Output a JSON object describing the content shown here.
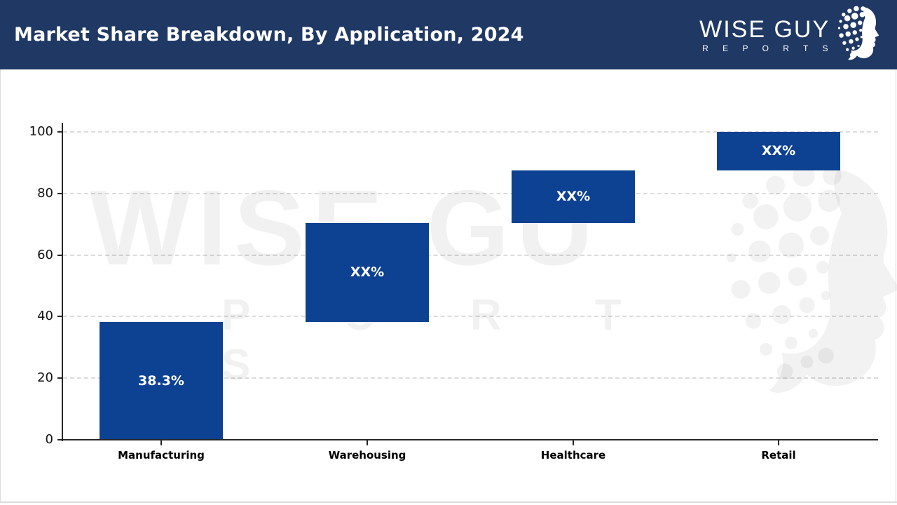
{
  "header": {
    "title": "Market Share Breakdown, By Application, 2024",
    "logo": {
      "brand_line1": "WISE GUY",
      "brand_line2": "R E P O R T S"
    }
  },
  "watermark": {
    "line1": "WISE GU",
    "line2": "P O R T S"
  },
  "colors": {
    "header_bg": "#1f3864",
    "bar": "#0d4191",
    "axis": "#262626",
    "grid": "#dcdcdc",
    "bar_label": "#ffffff"
  },
  "chart_data": {
    "type": "bar",
    "subtype": "waterfall",
    "title": "Market Share Breakdown, By Application, 2024",
    "categories": [
      "Manufacturing",
      "Warehousing",
      "Healthcare",
      "Retail"
    ],
    "bars": [
      {
        "category": "Manufacturing",
        "start": 0,
        "end": 38.3,
        "label": "38.3%"
      },
      {
        "category": "Warehousing",
        "start": 38.3,
        "end": 70.4,
        "label": "XX%"
      },
      {
        "category": "Healthcare",
        "start": 70.4,
        "end": 87.5,
        "label": "XX%"
      },
      {
        "category": "Retail",
        "start": 87.5,
        "end": 100,
        "label": "XX%"
      }
    ],
    "yticks": [
      0,
      20,
      40,
      60,
      80,
      100
    ],
    "ylim": [
      0,
      105
    ],
    "xlabel": "",
    "ylabel": "",
    "grid": "dashed-horizontal",
    "legend": null
  }
}
